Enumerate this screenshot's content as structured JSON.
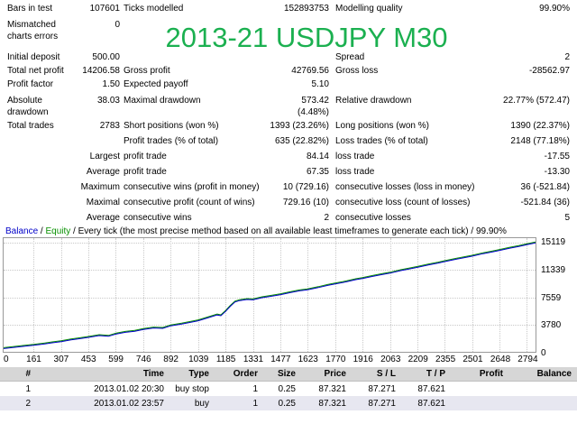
{
  "title": "2013-21 USDJPY M30",
  "colors": {
    "title_green": "#1bb050",
    "balance_blue": "#0000c8",
    "equity_green": "#089000",
    "grid_gray": "#c9c9c9",
    "table_header_bg": "#d6d6d6",
    "row_alt_bg": "#e7e7f0"
  },
  "stats": {
    "rows": [
      {
        "cells": [
          "Bars in test",
          "107601",
          "Ticks modelled",
          "152893753",
          "Modelling quality",
          "99.90%"
        ]
      },
      {
        "cells": [
          "Mismatched charts errors",
          "0",
          "",
          "",
          "",
          ""
        ]
      },
      {
        "cells": [
          "Initial deposit",
          "500.00",
          "",
          "",
          "Spread",
          "2"
        ]
      },
      {
        "cells": [
          "Total net profit",
          "14206.58",
          "Gross profit",
          "42769.56",
          "Gross loss",
          "-28562.97"
        ]
      },
      {
        "cells": [
          "Profit factor",
          "1.50",
          "Expected payoff",
          "5.10",
          "",
          ""
        ]
      },
      {
        "cells": [
          "Absolute drawdown",
          "38.03",
          "Maximal drawdown",
          "573.42 (4.48%)",
          "Relative drawdown",
          "22.77% (572.47)"
        ]
      },
      {
        "cells": [
          "Total trades",
          "2783",
          "Short positions (won %)",
          "1393 (23.26%)",
          "Long positions (won %)",
          "1390 (22.37%)"
        ]
      },
      {
        "cells": [
          "",
          "",
          "Profit trades (% of total)",
          "635 (22.82%)",
          "Loss trades (% of total)",
          "2148 (77.18%)"
        ]
      },
      {
        "cells": [
          "",
          "Largest",
          "profit trade",
          "84.14",
          "loss trade",
          "-17.55"
        ]
      },
      {
        "cells": [
          "",
          "Average",
          "profit trade",
          "67.35",
          "loss trade",
          "-13.30"
        ]
      },
      {
        "cells": [
          "",
          "Maximum",
          "consecutive wins (profit in money)",
          "10 (729.16)",
          "consecutive losses (loss in money)",
          "36 (-521.84)"
        ]
      },
      {
        "cells": [
          "",
          "Maximal",
          "consecutive profit (count of wins)",
          "729.16 (10)",
          "consecutive loss (count of losses)",
          "-521.84 (36)"
        ]
      },
      {
        "cells": [
          "",
          "Average",
          "consecutive wins",
          "2",
          "consecutive losses",
          "5"
        ]
      }
    ]
  },
  "chart_data": {
    "type": "line",
    "legend": {
      "balance_label": "Balance",
      "equity_label": "Equity",
      "separator": " / ",
      "description": "Every tick (the most precise method based on all available least timeframes to generate each tick) / 99.90%"
    },
    "y_ticks": [
      0,
      3780,
      7559,
      11339,
      15119
    ],
    "x_ticks": [
      0,
      161,
      307,
      453,
      599,
      746,
      892,
      1039,
      1185,
      1331,
      1477,
      1623,
      1770,
      1916,
      2063,
      2209,
      2355,
      2501,
      2648,
      2794
    ],
    "x_max": 2840,
    "y_max": 15750,
    "series": [
      {
        "name": "Balance",
        "points": [
          [
            0,
            450
          ],
          [
            60,
            620
          ],
          [
            120,
            800
          ],
          [
            161,
            900
          ],
          [
            220,
            1100
          ],
          [
            260,
            1250
          ],
          [
            307,
            1400
          ],
          [
            360,
            1650
          ],
          [
            400,
            1800
          ],
          [
            453,
            2000
          ],
          [
            510,
            2250
          ],
          [
            560,
            2150
          ],
          [
            599,
            2450
          ],
          [
            650,
            2700
          ],
          [
            700,
            2850
          ],
          [
            746,
            3100
          ],
          [
            800,
            3300
          ],
          [
            850,
            3250
          ],
          [
            892,
            3600
          ],
          [
            950,
            3850
          ],
          [
            1000,
            4100
          ],
          [
            1039,
            4300
          ],
          [
            1090,
            4700
          ],
          [
            1140,
            5100
          ],
          [
            1160,
            5000
          ],
          [
            1185,
            5600
          ],
          [
            1210,
            6300
          ],
          [
            1235,
            6900
          ],
          [
            1260,
            7100
          ],
          [
            1300,
            7250
          ],
          [
            1331,
            7200
          ],
          [
            1380,
            7500
          ],
          [
            1430,
            7700
          ],
          [
            1477,
            7900
          ],
          [
            1530,
            8200
          ],
          [
            1580,
            8450
          ],
          [
            1623,
            8600
          ],
          [
            1680,
            8900
          ],
          [
            1730,
            9200
          ],
          [
            1770,
            9400
          ],
          [
            1830,
            9700
          ],
          [
            1880,
            10000
          ],
          [
            1916,
            10150
          ],
          [
            1970,
            10450
          ],
          [
            2020,
            10700
          ],
          [
            2063,
            10900
          ],
          [
            2120,
            11250
          ],
          [
            2170,
            11500
          ],
          [
            2209,
            11700
          ],
          [
            2270,
            12050
          ],
          [
            2320,
            12300
          ],
          [
            2355,
            12500
          ],
          [
            2410,
            12800
          ],
          [
            2460,
            13050
          ],
          [
            2501,
            13250
          ],
          [
            2560,
            13600
          ],
          [
            2610,
            13850
          ],
          [
            2648,
            14050
          ],
          [
            2700,
            14350
          ],
          [
            2750,
            14600
          ],
          [
            2794,
            14850
          ],
          [
            2840,
            15100
          ]
        ]
      }
    ]
  },
  "trades": {
    "columns": [
      "#",
      "Time",
      "Type",
      "Order",
      "Size",
      "Price",
      "S / L",
      "T / P",
      "Profit",
      "Balance"
    ],
    "rows": [
      {
        "cells": [
          "1",
          "2013.01.02 20:30",
          "buy stop",
          "1",
          "0.25",
          "87.321",
          "87.271",
          "87.621",
          "",
          ""
        ]
      },
      {
        "cells": [
          "2",
          "2013.01.02 23:57",
          "buy",
          "1",
          "0.25",
          "87.321",
          "87.271",
          "87.621",
          "",
          ""
        ]
      }
    ]
  }
}
